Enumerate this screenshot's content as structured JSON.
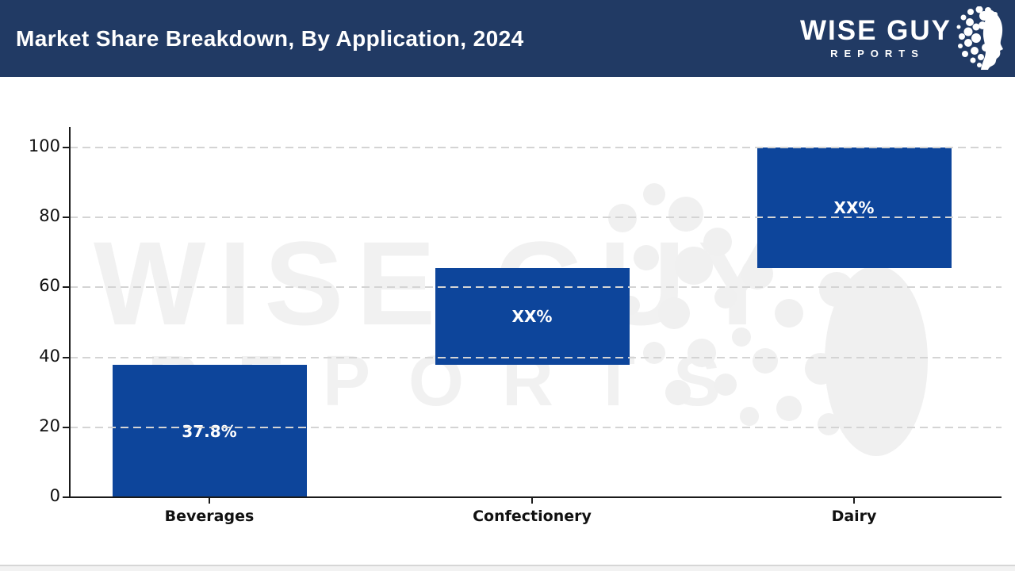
{
  "header": {
    "title": "Market Share Breakdown, By Application, 2024",
    "bg_color": "#213a64",
    "logo": {
      "line1": "WISE GUY",
      "line2": "REPORTS"
    }
  },
  "watermark": {
    "line1": "WISE GUY",
    "line2": "REPORTS"
  },
  "chart_data": {
    "type": "bar",
    "variant": "waterfall",
    "title": "Market Share Breakdown, By Application, 2024",
    "categories": [
      "Beverages",
      "Confectionery",
      "Dairy"
    ],
    "series": [
      {
        "category": "Beverages",
        "start": 0,
        "end": 37.8,
        "label": "37.8%"
      },
      {
        "category": "Confectionery",
        "start": 37.8,
        "end": 65.5,
        "label": "XX%"
      },
      {
        "category": "Dairy",
        "start": 65.5,
        "end": 100,
        "label": "XX%"
      }
    ],
    "xlabel": "",
    "ylabel": "",
    "yticks": [
      0,
      20,
      40,
      60,
      80,
      100
    ],
    "ylim": [
      0,
      106
    ],
    "grid": {
      "axis": "y",
      "style": "dashed",
      "color": "#d4d4d4",
      "on": true
    },
    "legend": "none",
    "bar_color": "#0d459b",
    "bar_label_color": "#ffffff",
    "axis_color": "#1a1a1a",
    "tick_label_color": "#111111"
  }
}
